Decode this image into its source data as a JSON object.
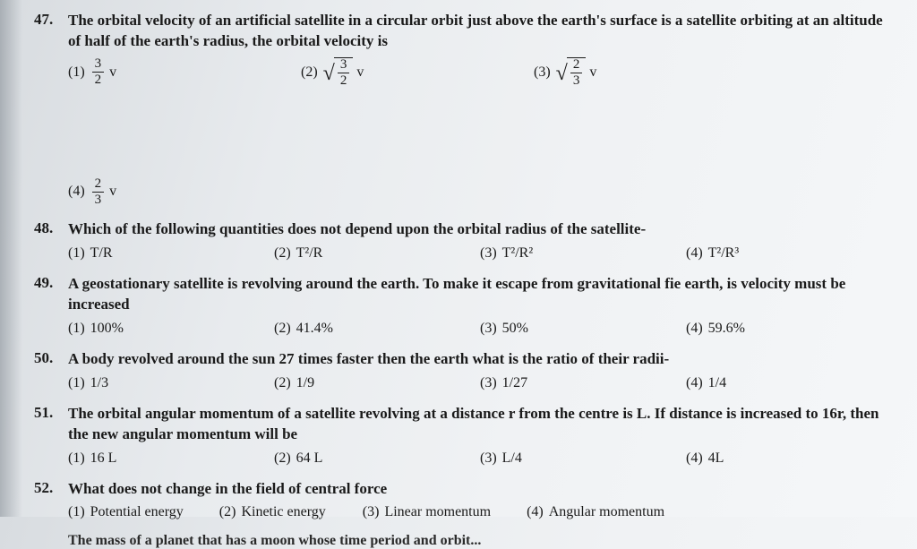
{
  "q47": {
    "num": "47.",
    "text": "The orbital velocity of an artificial satellite in a circular orbit just above the earth's surface is a satellite orbiting at an altitude of half of the earth's radius, the orbital velocity is",
    "opts": {
      "1": {
        "label": "(1)",
        "frac_num": "3",
        "frac_den": "2",
        "suffix": "v"
      },
      "2": {
        "label": "(2)",
        "frac_num": "3",
        "frac_den": "2",
        "suffix": "v"
      },
      "3": {
        "label": "(3)",
        "frac_num": "2",
        "frac_den": "3",
        "suffix": "v"
      },
      "4": {
        "label": "(4)",
        "frac_num": "2",
        "frac_den": "3",
        "suffix": "v"
      }
    }
  },
  "q48": {
    "num": "48.",
    "text": "Which of the following quantities does not depend upon the orbital radius of the satellite-",
    "opts": {
      "1": {
        "label": "(1)",
        "expr": "T/R"
      },
      "2": {
        "label": "(2)",
        "expr": "T²/R"
      },
      "3": {
        "label": "(3)",
        "expr": "T²/R²"
      },
      "4": {
        "label": "(4)",
        "expr": "T²/R³"
      }
    }
  },
  "q49": {
    "num": "49.",
    "text": "A geostationary satellite is revolving around the earth. To make it escape from gravitational fie earth, is velocity must be increased",
    "opts": {
      "1": {
        "label": "(1)",
        "val": "100%"
      },
      "2": {
        "label": "(2)",
        "val": "41.4%"
      },
      "3": {
        "label": "(3)",
        "val": "50%"
      },
      "4": {
        "label": "(4)",
        "val": "59.6%"
      }
    }
  },
  "q50": {
    "num": "50.",
    "text": "A body revolved around the sun 27 times faster then the earth what is the ratio of their radii-",
    "opts": {
      "1": {
        "label": "(1)",
        "val": "1/3"
      },
      "2": {
        "label": "(2)",
        "val": "1/9"
      },
      "3": {
        "label": "(3)",
        "val": "1/27"
      },
      "4": {
        "label": "(4)",
        "val": "1/4"
      }
    }
  },
  "q51": {
    "num": "51.",
    "text": "The orbital angular momentum of a satellite revolving at a distance r from the centre is L. If distance is increased to 16r, then the new angular momentum will be",
    "opts": {
      "1": {
        "label": "(1)",
        "val": "16 L"
      },
      "2": {
        "label": "(2)",
        "val": "64 L"
      },
      "3": {
        "label": "(3)",
        "val": "L/4"
      },
      "4": {
        "label": "(4)",
        "val": "4L"
      }
    }
  },
  "q52": {
    "num": "52.",
    "text": "What does not change in the field of central force",
    "opts": {
      "1": {
        "label": "(1)",
        "val": "Potential energy"
      },
      "2": {
        "label": "(2)",
        "val": "Kinetic energy"
      },
      "3": {
        "label": "(3)",
        "val": "Linear momentum"
      },
      "4": {
        "label": "(4)",
        "val": "Angular momentum"
      }
    }
  },
  "cutoff": "The mass of a planet that has a moon whose time period and orbit..."
}
